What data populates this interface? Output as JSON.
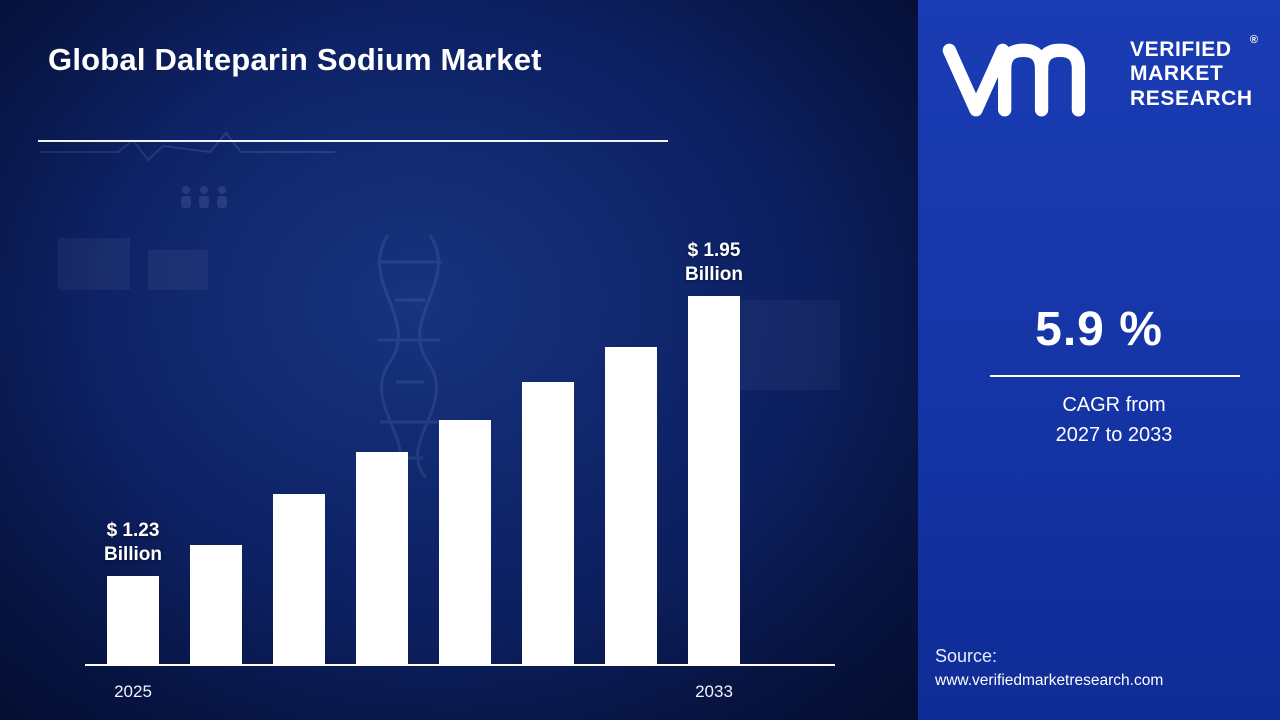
{
  "title": "Global Dalteparin Sodium Market",
  "colors": {
    "bar": "#ffffff",
    "panel_blue": "#1535a6",
    "background_blue": "#0d2164",
    "text": "#ffffff"
  },
  "chart_data": {
    "type": "bar",
    "categories": [
      "2025",
      "",
      "",
      "",
      "",
      "",
      "",
      "2033"
    ],
    "values": [
      1.23,
      1.31,
      1.44,
      1.55,
      1.63,
      1.73,
      1.82,
      1.95
    ],
    "unit": "Billion",
    "title": "Global Dalteparin Sodium Market",
    "xlabel": "",
    "ylabel": "",
    "ylim": [
      0,
      2
    ],
    "grid": false,
    "legend": false,
    "baseline_axis": true,
    "annotations": [
      {
        "index": 0,
        "lines": [
          "$ 1.23",
          "Billion"
        ]
      },
      {
        "index": 7,
        "lines": [
          "$ 1.95",
          "Billion"
        ]
      }
    ]
  },
  "panel": {
    "brand": {
      "lines": [
        "VERIFIED",
        "MARKET",
        "RESEARCH"
      ],
      "registered": "®"
    },
    "cagr_value": "5.9 %",
    "cagr_caption_line1": "CAGR from",
    "cagr_caption_line2": "2027 to 2033",
    "source_label": "Source:",
    "source_url": "www.verifiedmarketresearch.com"
  }
}
